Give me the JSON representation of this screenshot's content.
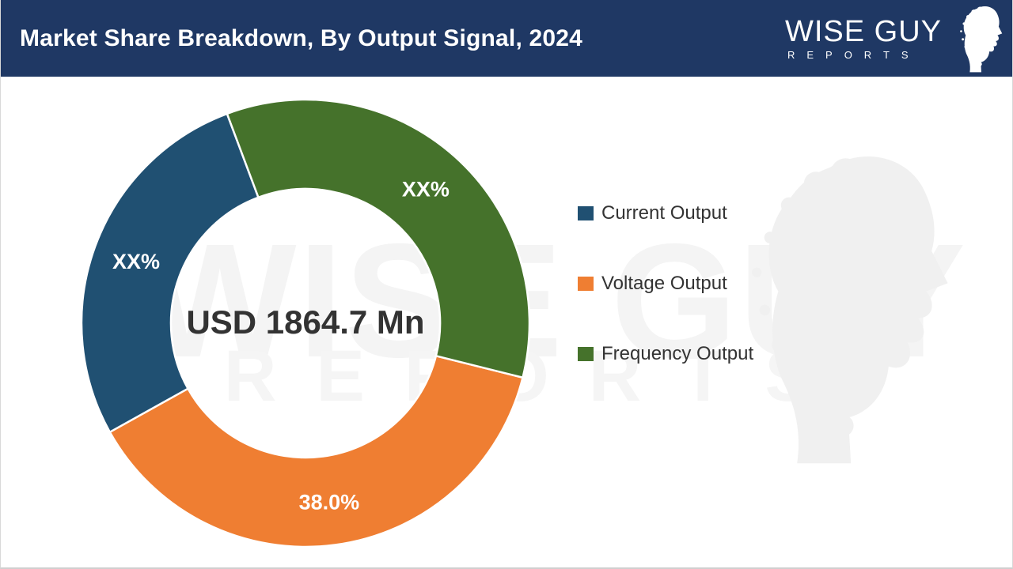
{
  "header": {
    "title": "Market Share Breakdown, By Output Signal, 2024",
    "background_color": "#1F3864",
    "brand": {
      "line1": "WISE GUY",
      "line2": "REPORTS"
    }
  },
  "chart_data": {
    "type": "donut",
    "title": "Market Share Breakdown, By Output Signal, 2024",
    "center_label": "USD 1864.7 Mn",
    "legend_position": "right",
    "start_angle_deg": 110.5,
    "direction": "counterclockwise",
    "outer_radius": 283,
    "inner_radius": 170,
    "segments": [
      {
        "label": "Current Output",
        "display_value": "XX%",
        "percent": 27.4,
        "color": "#205072"
      },
      {
        "label": "Voltage Output",
        "display_value": "38.0%",
        "percent": 38.0,
        "color": "#EF7E32"
      },
      {
        "label": "Frequency Output",
        "display_value": "XX%",
        "percent": 34.6,
        "color": "#45722B"
      }
    ]
  },
  "watermark": {
    "line1": "WISE GUY",
    "line2": "REPORTS"
  },
  "theme": {
    "text_dark": "#333333",
    "watermark_gray": "#f4f4f4",
    "slice_divider": "#ffffff"
  }
}
